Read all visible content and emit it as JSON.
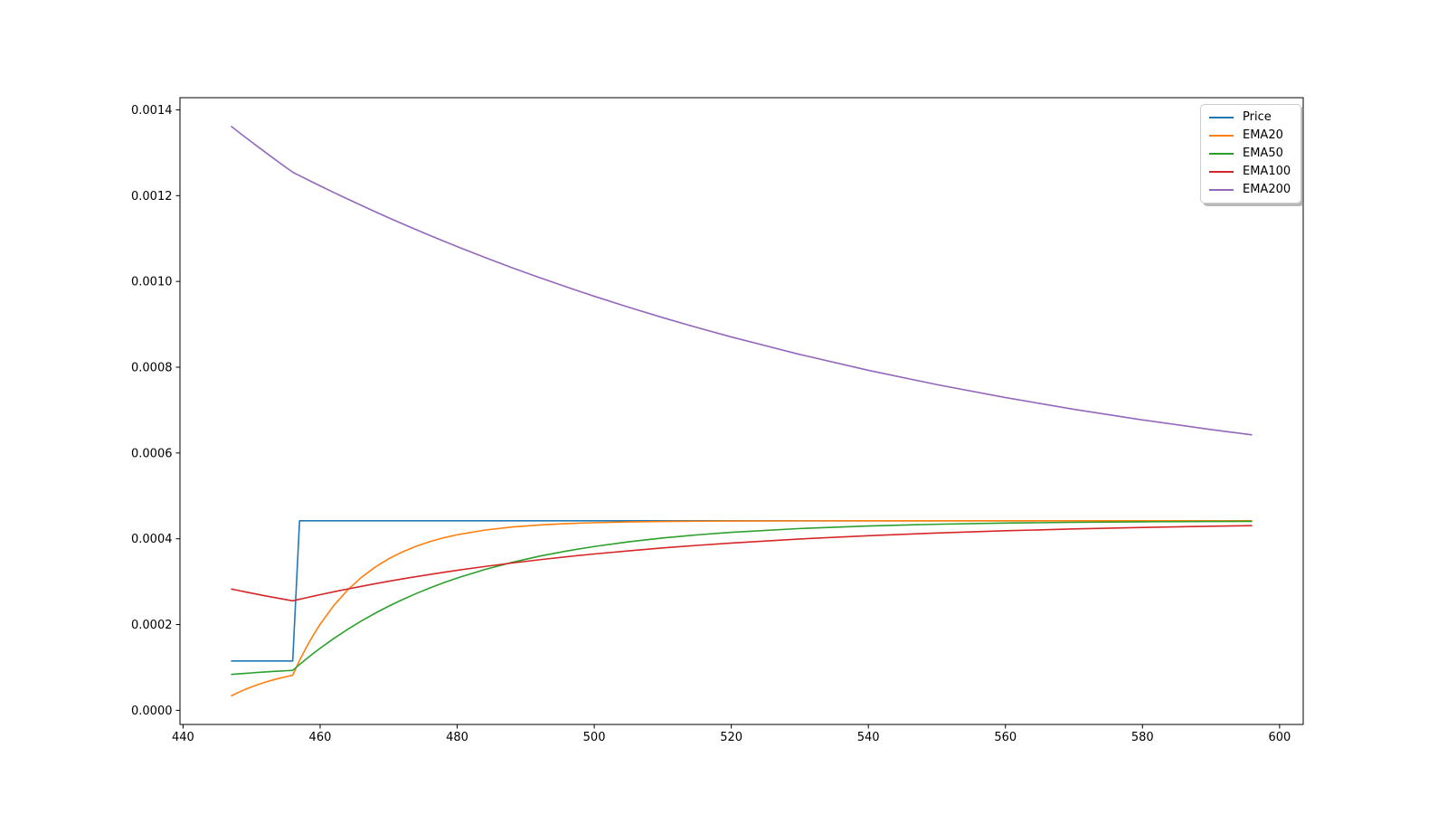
{
  "figure": {
    "background": "#ffffff",
    "spine_color": "#000000",
    "tick_color": "#000000"
  },
  "legend": {
    "position": "upper right",
    "border_color": "#cccccc",
    "background": "#ffffff"
  },
  "chart_data": {
    "type": "line",
    "title": "",
    "xlabel": "",
    "ylabel": "",
    "grid": false,
    "legend_position": "upper right",
    "xlim": [
      439.55,
      603.45
    ],
    "ylim": [
      -3.29e-05,
      0.0014284
    ],
    "xticks": {
      "values": [
        440,
        460,
        480,
        500,
        520,
        540,
        560,
        580,
        600
      ],
      "labels": [
        "440",
        "460",
        "480",
        "500",
        "520",
        "540",
        "560",
        "580",
        "600"
      ]
    },
    "yticks": {
      "values": [
        0.0,
        0.0002,
        0.0004,
        0.0006,
        0.0008,
        0.001,
        0.0012,
        0.0014
      ],
      "labels": [
        "0.0000",
        "0.0002",
        "0.0004",
        "0.0006",
        "0.0008",
        "0.0010",
        "0.0012",
        "0.0014"
      ]
    },
    "x": [
      447,
      448,
      449,
      450,
      451,
      452,
      453,
      454,
      455,
      456,
      457,
      458,
      459,
      460,
      462,
      464,
      466,
      468,
      470,
      472,
      474,
      476,
      478,
      480,
      484,
      488,
      492,
      496,
      500,
      505,
      510,
      515,
      520,
      530,
      540,
      550,
      560,
      570,
      580,
      590,
      596
    ],
    "series": [
      {
        "name": "Price",
        "color": "#1f77b4",
        "values": [
          0.000115,
          0.000115,
          0.000115,
          0.000115,
          0.000115,
          0.000115,
          0.000115,
          0.000115,
          0.000115,
          0.000115,
          0.000442,
          0.000442,
          0.000442,
          0.000442,
          0.000442,
          0.000442,
          0.000442,
          0.000442,
          0.000442,
          0.000442,
          0.000442,
          0.000442,
          0.000442,
          0.000442,
          0.000442,
          0.000442,
          0.000442,
          0.000442,
          0.000442,
          0.000442,
          0.000442,
          0.000442,
          0.000442,
          0.000442,
          0.000442,
          0.000442,
          0.000442,
          0.000442,
          0.000442,
          0.000442,
          0.000442
        ]
      },
      {
        "name": "EMA20",
        "color": "#ff7f0e",
        "values": [
          3.35e-05,
          4.13e-05,
          4.83e-05,
          5.46e-05,
          6.04e-05,
          6.56e-05,
          7.03e-05,
          7.45e-05,
          7.84e-05,
          8.19e-05,
          0.0001162,
          0.0001472,
          0.0001753,
          0.0002007,
          0.0002445,
          0.0002803,
          0.0003096,
          0.0003336,
          0.0003533,
          0.0003694,
          0.0003826,
          0.0003933,
          0.0004022,
          0.0004094,
          0.0004202,
          0.0004274,
          0.0004322,
          0.0004354,
          0.0004376,
          0.0004393,
          0.0004404,
          0.000441,
          0.0004414,
          0.0004418,
          0.0004419,
          0.000442,
          0.000442,
          0.000442,
          0.000442,
          0.000442,
          0.000442
        ]
      },
      {
        "name": "EMA50",
        "color": "#2ca02c",
        "values": [
          8.38e-05,
          8.5e-05,
          8.62e-05,
          8.73e-05,
          8.84e-05,
          8.95e-05,
          9.05e-05,
          9.14e-05,
          9.23e-05,
          9.32e-05,
          0.0001069,
          0.00012,
          0.0001326,
          0.0001448,
          0.0001676,
          0.0001887,
          0.0002082,
          0.0002262,
          0.0002428,
          0.0002581,
          0.0002722,
          0.0002853,
          0.0002973,
          0.0003085,
          0.0003282,
          0.000345,
          0.0003594,
          0.0003716,
          0.000382,
          0.0003929,
          0.0004018,
          0.0004091,
          0.000415,
          0.0004239,
          0.0004299,
          0.0004339,
          0.0004366,
          0.0004384,
          0.0004396,
          0.0004404,
          0.0004407
        ]
      },
      {
        "name": "EMA100",
        "color": "#d62728",
        "values": [
          0.000283,
          0.0002797,
          0.0002764,
          0.0002732,
          0.0002701,
          0.000267,
          0.000264,
          0.0002611,
          0.0002582,
          0.0002553,
          0.000259,
          0.0002626,
          0.0002662,
          0.0002697,
          0.0002764,
          0.0002829,
          0.0002891,
          0.0002951,
          0.0003009,
          0.0003064,
          0.0003117,
          0.0003168,
          0.0003218,
          0.0003265,
          0.0003353,
          0.0003435,
          0.0003511,
          0.0003581,
          0.0003646,
          0.0003719,
          0.0003786,
          0.0003846,
          0.0003901,
          0.0003995,
          0.0004072,
          0.0004135,
          0.0004187,
          0.0004229,
          0.0004264,
          0.0004292,
          0.0004307
        ]
      },
      {
        "name": "EMA200",
        "color": "#9467bd",
        "values": [
          0.001362,
          0.0013496,
          0.0013373,
          0.0013251,
          0.0013131,
          0.0013012,
          0.0012894,
          0.0012777,
          0.0012661,
          0.0012547,
          0.0012466,
          0.0012386,
          0.0012307,
          0.0012228,
          0.0012074,
          0.0011922,
          0.0011774,
          0.0011628,
          0.0011485,
          0.0011346,
          0.0011208,
          0.0011074,
          0.0010942,
          0.0010813,
          0.0010562,
          0.0010321,
          0.001009,
          0.0009868,
          0.0009654,
          0.0009399,
          0.0009156,
          0.0008925,
          0.0008705,
          0.0008297,
          0.0007928,
          0.0007594,
          0.0007292,
          0.0007019,
          0.0006771,
          0.0006547,
          0.0006423
        ]
      }
    ]
  }
}
